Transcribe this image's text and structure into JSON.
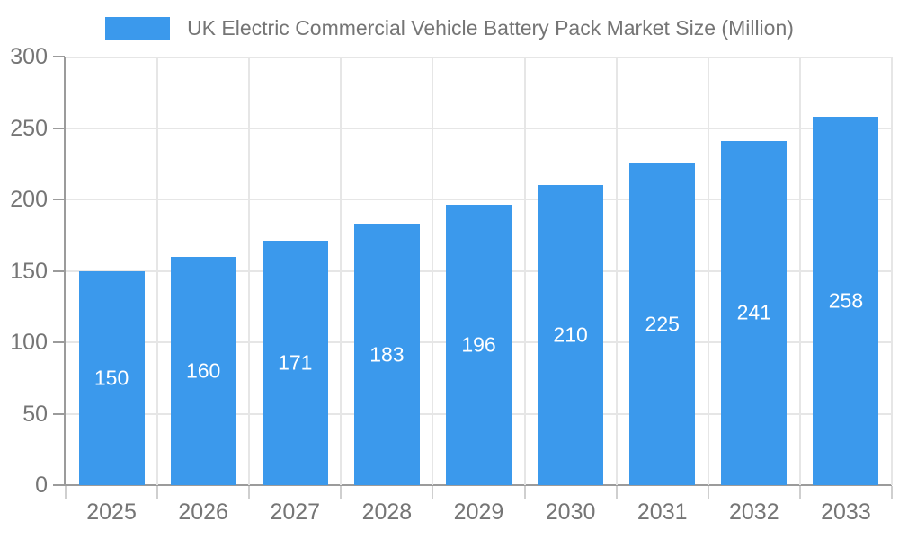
{
  "chart_data": {
    "type": "bar",
    "title": "UK Electric Commercial Vehicle Battery Pack Market Size (Million)",
    "categories": [
      "2025",
      "2026",
      "2027",
      "2028",
      "2029",
      "2030",
      "2031",
      "2032",
      "2033"
    ],
    "values": [
      150,
      160,
      171,
      183,
      196,
      210,
      225,
      241,
      258
    ],
    "xlabel": "",
    "ylabel": "",
    "ylim": [
      0,
      300
    ],
    "yticks": [
      0,
      50,
      100,
      150,
      200,
      250,
      300
    ],
    "grid": true,
    "legend_position": "top",
    "value_labels": "inside-center"
  },
  "legend": {
    "label": "UK Electric Commercial Vehicle Battery Pack Market Size (Million)"
  },
  "colors": {
    "bar": "#3b99ec",
    "grid": "#e6e6e6",
    "axis": "#9b9b9b",
    "tick": "#cfcfcf",
    "label": "#757575",
    "value_label": "#ffffff",
    "background": "#ffffff"
  }
}
